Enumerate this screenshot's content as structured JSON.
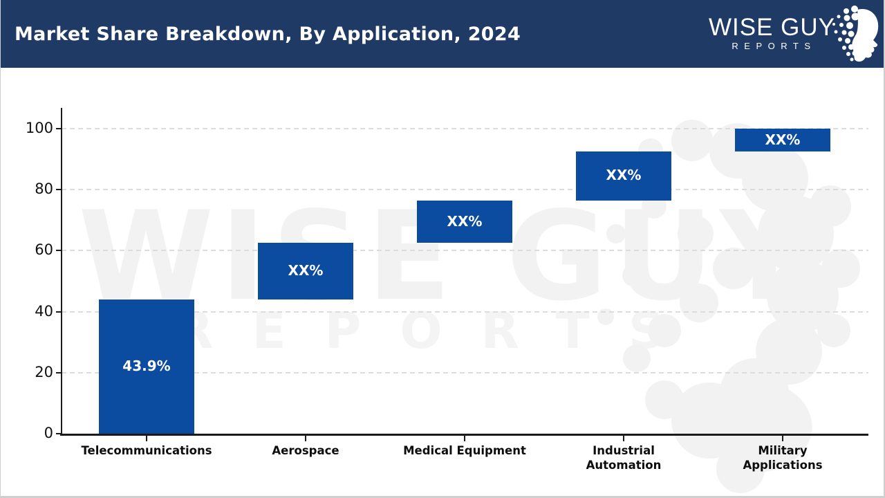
{
  "header": {
    "title": "Market Share Breakdown, By Application, 2024",
    "logo": {
      "wordmark": "WISE GUY",
      "subtext": "REPORTS"
    }
  },
  "watermark": {
    "wordmark": "WISE GUY",
    "subtext": "REPORTS"
  },
  "chart_data": {
    "type": "bar",
    "variant": "floating-waterfall",
    "title": "Market Share Breakdown, By Application, 2024",
    "categories": [
      "Telecommunications",
      "Aerospace",
      "Medical Equipment",
      "Industrial Automation",
      "Military Applications"
    ],
    "category_label_lines": [
      [
        "Telecommunications"
      ],
      [
        "Aerospace"
      ],
      [
        "Medical Equipment"
      ],
      [
        "Industrial",
        "Automation"
      ],
      [
        "Military",
        "Applications"
      ]
    ],
    "series": [
      {
        "name": "Market Share (%)",
        "segments": [
          {
            "category": "Telecommunications",
            "start": 0,
            "end": 43.9,
            "label": "43.9%"
          },
          {
            "category": "Aerospace",
            "start": 43.9,
            "end": 62.5,
            "label": "XX%"
          },
          {
            "category": "Medical Equipment",
            "start": 62.5,
            "end": 76.5,
            "label": "XX%"
          },
          {
            "category": "Industrial Automation",
            "start": 76.5,
            "end": 92.5,
            "label": "XX%"
          },
          {
            "category": "Military Applications",
            "start": 92.5,
            "end": 100,
            "label": "XX%"
          }
        ]
      }
    ],
    "xlabel": "",
    "ylabel": "",
    "ylim": [
      0,
      100
    ],
    "yticks": [
      0,
      20,
      40,
      60,
      80,
      100
    ],
    "grid": "horizontal-dashed",
    "legend": "none"
  },
  "colors": {
    "header_bg": "#203a66",
    "title_text": "#ffffff",
    "bar": "#0b4ba0",
    "bar_label": "#ffffff",
    "axis": "#1a1a1a",
    "gridline": "#dcdcdc",
    "watermark": "#f2f2f3",
    "page_bg": "#ffffff"
  }
}
